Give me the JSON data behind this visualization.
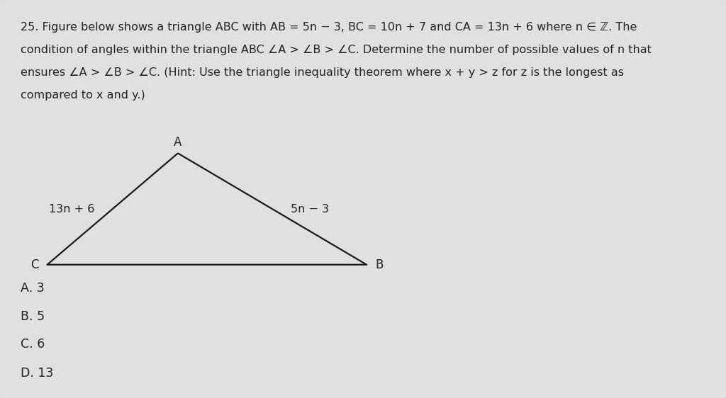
{
  "background_color": "#c8c8c8",
  "card_color": "#e0e0e0",
  "triangle": {
    "A": [
      0.245,
      0.615
    ],
    "B": [
      0.505,
      0.335
    ],
    "C": [
      0.065,
      0.335
    ],
    "label_A": "A",
    "label_B": "B",
    "label_C": "C",
    "side_AB_label": "5n − 3",
    "side_CA_label": "13n + 6",
    "line_color": "#1a1a1a",
    "line_width": 1.6
  },
  "question_line1": "25. Figure below shows a triangle ABC with AB = 5n − 3, BC = 10n + 7 and CA = 13n + 6 where n ∈ ℤ. The",
  "question_line2": "condition of angles within the triangle ABC ∠A > ∠B > ∠C. Determine the number of possible values of n that",
  "question_line3": "ensures ∠A > ∠B > ∠C. (Hint: Use the triangle inequality theorem where x + y > z for z is the longest as",
  "question_line4": "compared to x and y.)",
  "choices": [
    "A. 3",
    "B. 5",
    "C. 6",
    "D. 13"
  ],
  "text_color": "#222222",
  "text_fontsize": 11.5,
  "choice_fontsize": 12.5
}
